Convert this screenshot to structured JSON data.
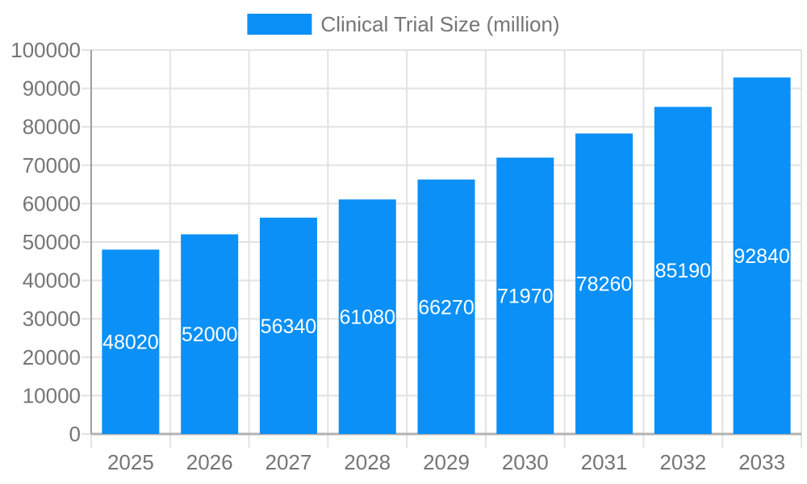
{
  "legend": {
    "label": "Clinical Trial Size (million)"
  },
  "chart_data": {
    "type": "bar",
    "title": "Clinical Trial Size (million)",
    "series_name": "Clinical Trial Size (million)",
    "categories": [
      "2025",
      "2026",
      "2027",
      "2028",
      "2029",
      "2030",
      "2031",
      "2032",
      "2033"
    ],
    "values": [
      48020,
      52000,
      56340,
      61080,
      66270,
      71970,
      78260,
      85190,
      92840
    ],
    "xlabel": "",
    "ylabel": "",
    "ylim": [
      0,
      100000
    ],
    "ytick_step": 10000,
    "ytick_labels": [
      "0",
      "10000",
      "20000",
      "30000",
      "40000",
      "50000",
      "60000",
      "70000",
      "80000",
      "90000",
      "100000"
    ],
    "grid": true,
    "legend_position": "top-center",
    "value_label_position": "inside-center"
  },
  "colors": {
    "bar": "#0a90f6",
    "bar_value_label": "#ffffff",
    "axis_text": "#757575",
    "legend_text": "#757575",
    "grid_line": "#e2e2e2",
    "y_axis_line": "#9e9e9e",
    "x_axis_line": "#b1b1b1",
    "background": "#ffffff"
  }
}
